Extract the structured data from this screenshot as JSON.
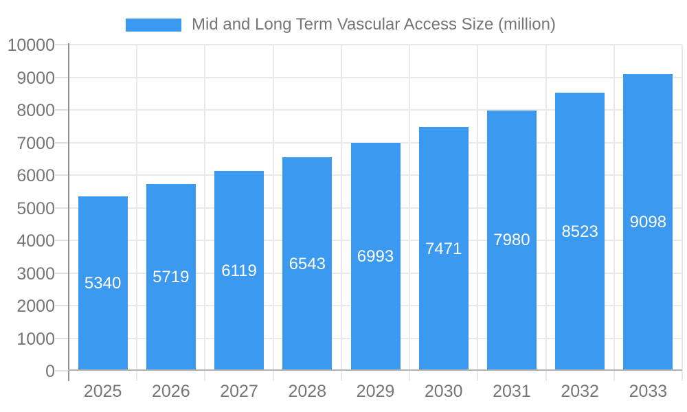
{
  "chart_data": {
    "type": "bar",
    "title": "Mid and Long Term Vascular Access Size (million)",
    "categories": [
      "2025",
      "2026",
      "2027",
      "2028",
      "2029",
      "2030",
      "2031",
      "2032",
      "2033"
    ],
    "series": [
      {
        "name": "Mid and Long Term Vascular Access Size (million)",
        "values": [
          5340,
          5719,
          6119,
          6543,
          6993,
          7471,
          7980,
          8523,
          9098
        ]
      }
    ],
    "values": [
      5340,
      5719,
      6119,
      6543,
      6993,
      7471,
      7980,
      8523,
      9098
    ],
    "bar_value_labels": [
      "5340",
      "5719",
      "6119",
      "6543",
      "6993",
      "7471",
      "7980",
      "8523",
      "9098"
    ],
    "xlabel": "",
    "ylabel": "",
    "ylim": [
      0,
      10000
    ],
    "ytick_step": 1000,
    "yticks": [
      "0",
      "1000",
      "2000",
      "3000",
      "4000",
      "5000",
      "6000",
      "7000",
      "8000",
      "9000",
      "10000"
    ],
    "grid": true,
    "legend_position": "top",
    "colors": {
      "bar": "#3B99EF",
      "bar_label": "#FFFFFF",
      "axis_text": "#757575",
      "gridline": "#E9E9E9",
      "y_axis_line": "#8F8F8F",
      "x_axis_line": "#B3B3B3",
      "tick": "#E0E0E0",
      "background": "#FFFFFF"
    }
  }
}
